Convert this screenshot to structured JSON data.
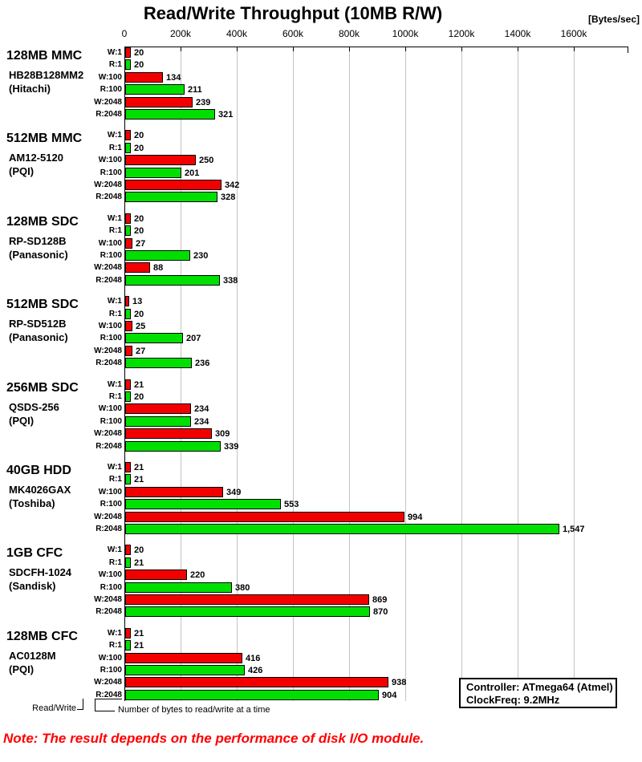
{
  "header": {
    "title": "Read/Write Throughput (10MB R/W)",
    "unit_label": "[Bytes/sec]"
  },
  "axis": {
    "ticks": [
      "0",
      "200k",
      "400k",
      "600k",
      "800k",
      "1000k",
      "1200k",
      "1400k",
      "1600k"
    ]
  },
  "chart_data": {
    "type": "bar",
    "orientation": "horizontal",
    "title": "Read/Write Throughput (10MB R/W)",
    "xlabel": "[Bytes/sec]",
    "x_ticks_k": [
      0,
      200,
      400,
      600,
      800,
      1000,
      1200,
      1400,
      1600
    ],
    "xlim_k": [
      0,
      1794
    ],
    "value_unit_multiplier": 1000,
    "grid": true,
    "colors": {
      "write": "#f20000",
      "read": "#00e000",
      "grid": "#c3c3c3",
      "axis": "#000000"
    },
    "row_labels": [
      "W:1",
      "R:1",
      "W:100",
      "R:100",
      "W:2048",
      "R:2048"
    ],
    "groups": [
      {
        "title": "128MB MMC",
        "model": "HB28B128MM2",
        "brand": "(Hitachi)",
        "values": [
          20,
          20,
          134,
          211,
          239,
          321
        ],
        "labels": [
          "20",
          "20",
          "134",
          "211",
          "239",
          "321"
        ]
      },
      {
        "title": "512MB MMC",
        "model": "AM12-5120",
        "brand": "(PQI)",
        "values": [
          20,
          20,
          250,
          201,
          342,
          328
        ],
        "labels": [
          "20",
          "20",
          "250",
          "201",
          "342",
          "328"
        ]
      },
      {
        "title": "128MB SDC",
        "model": "RP-SD128B",
        "brand": "(Panasonic)",
        "values": [
          20,
          20,
          27,
          230,
          88,
          338
        ],
        "labels": [
          "20",
          "20",
          "27",
          "230",
          "88",
          "338"
        ]
      },
      {
        "title": "512MB SDC",
        "model": "RP-SD512B",
        "brand": "(Panasonic)",
        "values": [
          13,
          20,
          25,
          207,
          27,
          236
        ],
        "labels": [
          "13",
          "20",
          "25",
          "207",
          "27",
          "236"
        ]
      },
      {
        "title": "256MB SDC",
        "model": "QSDS-256",
        "brand": "(PQI)",
        "values": [
          21,
          20,
          234,
          234,
          309,
          339
        ],
        "labels": [
          "21",
          "20",
          "234",
          "234",
          "309",
          "339"
        ]
      },
      {
        "title": "40GB HDD",
        "model": "MK4026GAX",
        "brand": "(Toshiba)",
        "values": [
          21,
          21,
          349,
          553,
          994,
          1547
        ],
        "labels": [
          "21",
          "21",
          "349",
          "553",
          "994",
          "1,547"
        ]
      },
      {
        "title": "1GB CFC",
        "model": "SDCFH-1024",
        "brand": "(Sandisk)",
        "values": [
          20,
          21,
          220,
          380,
          869,
          870
        ],
        "labels": [
          "20",
          "21",
          "220",
          "380",
          "869",
          "870"
        ]
      },
      {
        "title": "128MB CFC",
        "model": "AC0128M",
        "brand": "(PQI)",
        "values": [
          21,
          21,
          416,
          426,
          938,
          904
        ],
        "labels": [
          "21",
          "21",
          "416",
          "426",
          "938",
          "904"
        ]
      }
    ]
  },
  "footer": {
    "legend_rw": "Read/Write",
    "legend_bytes": "Number of bytes to read/write at a time",
    "controller_line1": "Controller: ATmega64 (Atmel)",
    "controller_line2": "ClockFreq: 9.2MHz",
    "note": "Note: The result depends on the performance of disk I/O module."
  }
}
